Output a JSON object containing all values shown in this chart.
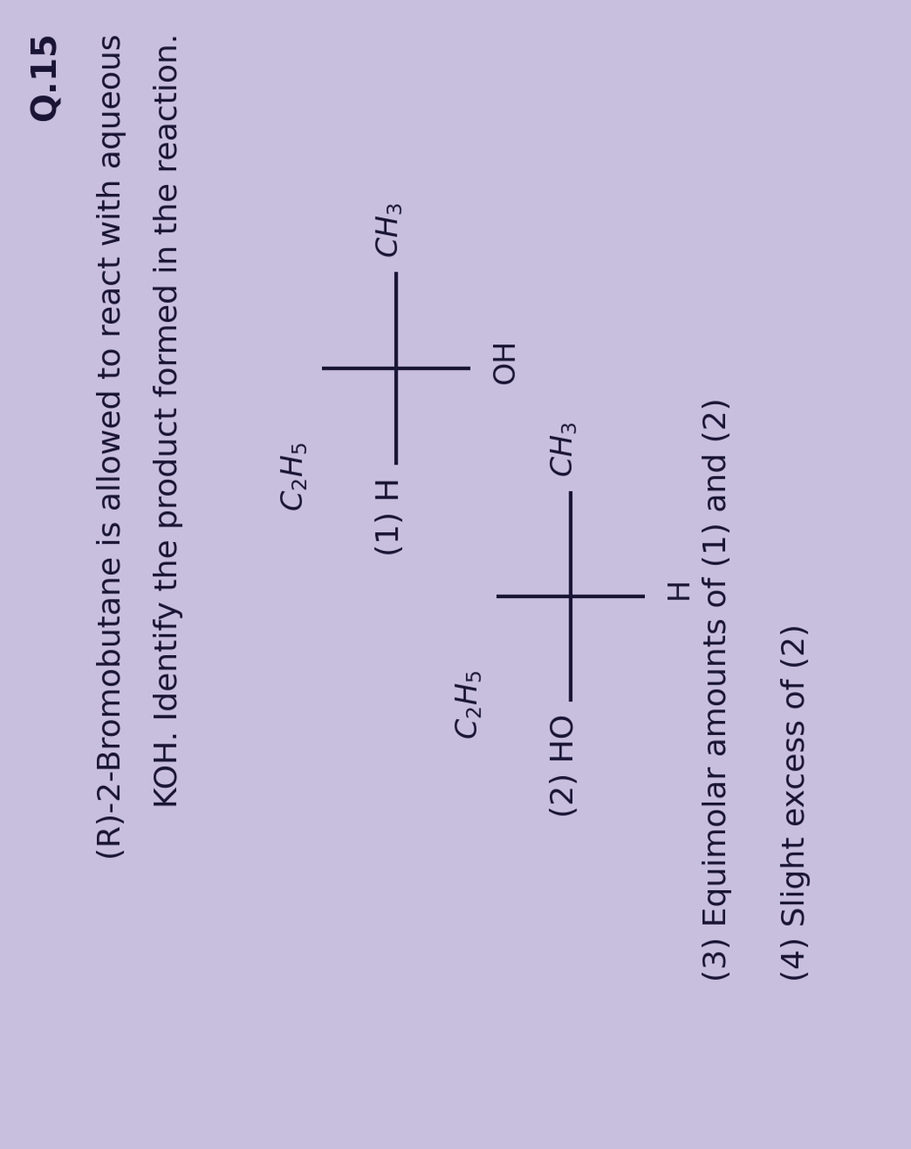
{
  "bg_color": "#c8bedd",
  "text_color": "#1a1535",
  "question_number": "Q.15",
  "question_text_line1": "(R)-2-Bromobutane is allowed to react with aqueous",
  "question_text_line2": "KOH. Identify the product formed in the reaction.",
  "option1_label": "(1) H",
  "option2_label": "(2) HO",
  "option3_text": "(3) Equimolar amounts of (1) and (2)",
  "option4_text": "(4) Slight excess of (2)",
  "font_size_q": 28,
  "font_size_main": 26,
  "font_size_label": 26,
  "font_size_chem": 24,
  "fig_width": 10.24,
  "fig_height": 12.91,
  "dpi": 100
}
